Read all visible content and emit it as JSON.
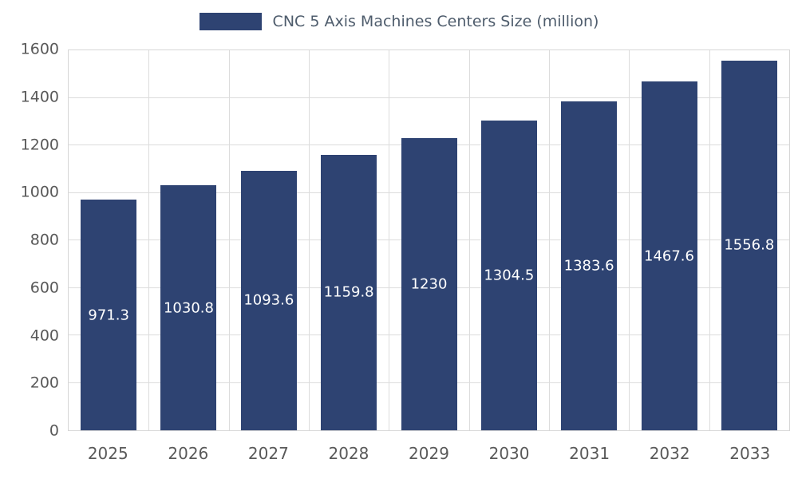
{
  "chart_data": {
    "type": "bar",
    "title": "CNC 5 Axis Machines Centers Size (million)",
    "categories": [
      "2025",
      "2026",
      "2027",
      "2028",
      "2029",
      "2030",
      "2031",
      "2032",
      "2033"
    ],
    "values": [
      971.3,
      1030.8,
      1093.6,
      1159.8,
      1230,
      1304.5,
      1383.6,
      1467.6,
      1556.8
    ],
    "value_labels": [
      "971.3",
      "1030.8",
      "1093.6",
      "1159.8",
      "1230",
      "1304.5",
      "1383.6",
      "1467.6",
      "1556.8"
    ],
    "xlabel": "",
    "ylabel": "",
    "ylim": [
      0,
      1600
    ],
    "ytick_step": 200,
    "yticks": [
      0,
      200,
      400,
      600,
      800,
      1000,
      1200,
      1400,
      1600
    ],
    "grid": true,
    "legend_position": "top-center",
    "bar_color": "#2E4372",
    "bar_label_color": "#ffffff",
    "axis_text_color": "#595959",
    "title_color": "#4e5c6c",
    "grid_color": "#dcdcdc"
  }
}
